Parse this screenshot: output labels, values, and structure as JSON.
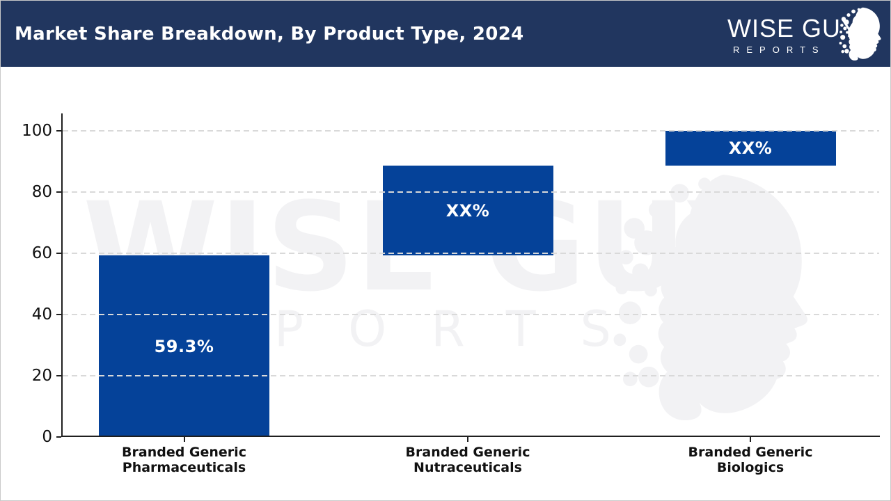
{
  "header": {
    "title": "Market Share Breakdown, By Product Type, 2024",
    "bg_color": "#21365f",
    "logo": {
      "line1": "WISE GUY",
      "line2": "REPORTS"
    }
  },
  "watermark": {
    "line1": "WISE GUY",
    "line2": "REPORTS"
  },
  "chart_data": {
    "type": "bar",
    "subtype": "floating-waterfall",
    "title": "Market Share Breakdown, By Product Type, 2024",
    "categories": [
      "Branded Generic Pharmaceuticals",
      "Branded Generic Nutraceuticals",
      "Branded Generic Biologics"
    ],
    "x_labels_two_line": [
      [
        "Branded Generic",
        "Pharmaceuticals"
      ],
      [
        "Branded Generic",
        "Nutraceuticals"
      ],
      [
        "Branded Generic",
        "Biologics"
      ]
    ],
    "segments": [
      {
        "category": "Branded Generic Pharmaceuticals",
        "start": 0,
        "end": 59.3,
        "value_label": "59.3%"
      },
      {
        "category": "Branded Generic Nutraceuticals",
        "start": 59.3,
        "end": 88.6,
        "value_label": "XX%"
      },
      {
        "category": "Branded Generic Biologics",
        "start": 88.6,
        "end": 100,
        "value_label": "XX%"
      }
    ],
    "xlabel": "",
    "ylabel": "",
    "ylim": [
      0,
      100
    ],
    "yticks": [
      0,
      20,
      40,
      60,
      80,
      100
    ],
    "grid": "horizontal-dashed",
    "grid_above_bars": true,
    "legend_position": "none",
    "bar_color": "#054299",
    "label_color": "#ffffff",
    "axis_color": "#1f1f1f"
  }
}
